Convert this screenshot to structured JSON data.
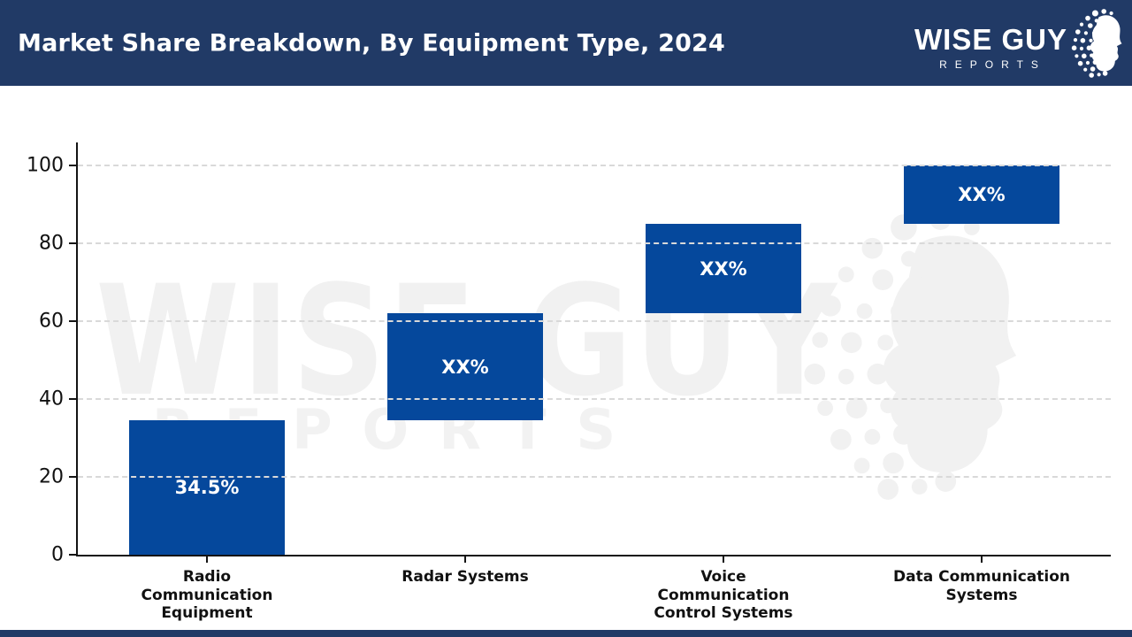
{
  "header": {
    "title": "Market Share Breakdown, By Equipment Type, 2024",
    "logo": {
      "line1": "WISE GUY",
      "line2": "REPORTS"
    }
  },
  "watermark": {
    "line1": "WISE GUY",
    "line2": "REPORTS",
    "face_icon": "dotted-head-profile"
  },
  "colors": {
    "header_bg": "#213A66",
    "footer_bg": "#213A66",
    "bar": "#05489C",
    "bar_label": "#FFFFFF",
    "gridline": "#D9D9D9",
    "axis": "#141414",
    "watermark": "#F1F1F1"
  },
  "chart_data": {
    "type": "bar",
    "subtype": "waterfall",
    "title": "Market Share Breakdown, By Equipment Type, 2024",
    "categories": [
      "Radio\nCommunication\nEquipment",
      "Radar Systems",
      "Voice\nCommunication\nControl Systems",
      "Data Communication\nSystems"
    ],
    "segments": [
      {
        "category": "Radio Communication Equipment",
        "start": 0,
        "end": 34.5,
        "label": "34.5%"
      },
      {
        "category": "Radar Systems",
        "start": 34.5,
        "end": 62,
        "label": "XX%"
      },
      {
        "category": "Voice Communication Control Systems",
        "start": 62,
        "end": 85,
        "label": "XX%"
      },
      {
        "category": "Data Communication Systems",
        "start": 85,
        "end": 100,
        "label": "XX%"
      }
    ],
    "ylabel": "",
    "xlabel": "",
    "ylim": [
      0,
      100
    ],
    "yticks": [
      0,
      20,
      40,
      60,
      80,
      100
    ],
    "grid": {
      "axis": "y",
      "style": "dashed",
      "drawn_above_bars": true
    },
    "legend": "none"
  }
}
